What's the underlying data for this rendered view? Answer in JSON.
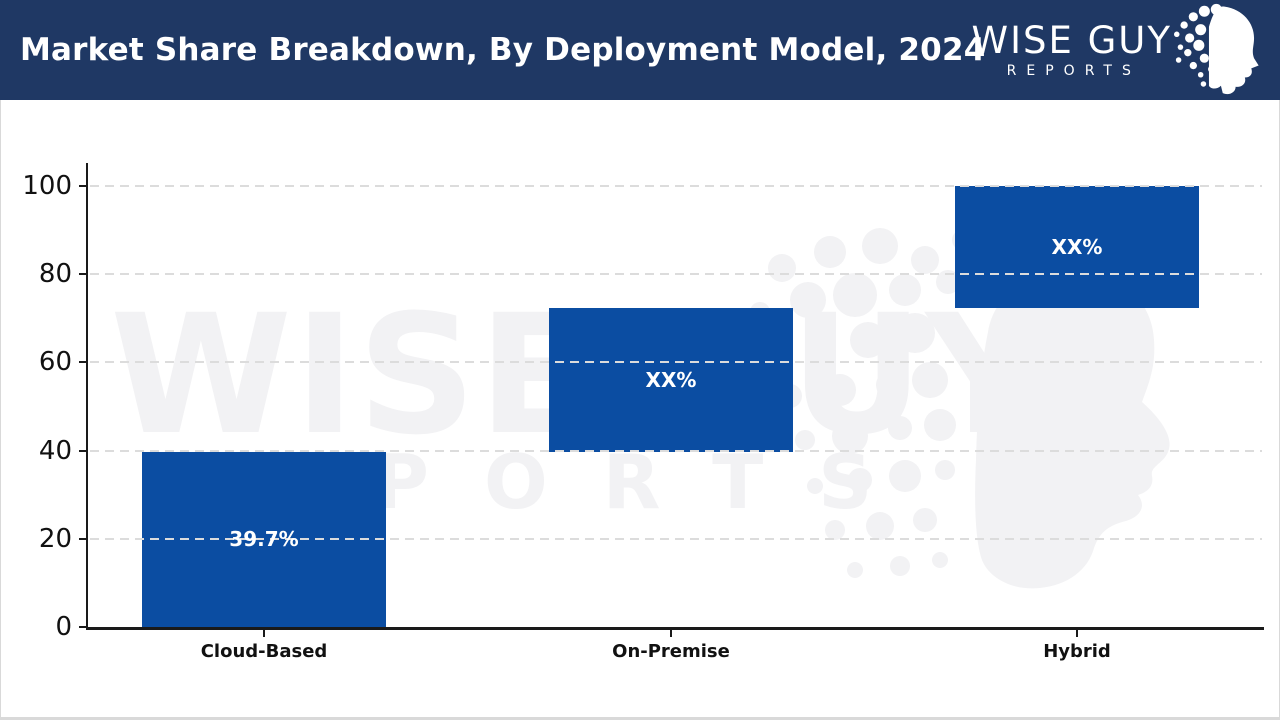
{
  "header": {
    "title": "Market Share Breakdown, By Deployment Model, 2024",
    "logo": {
      "line1": "WISE GUY",
      "line2": "REPORTS"
    }
  },
  "watermark": {
    "line1": "WISE GUY",
    "line2": "REPORTS"
  },
  "colors": {
    "header_bg": "#1f3864",
    "bar": "#0b4da2",
    "grid": "#dcdcdc",
    "axis": "#1a1a1a",
    "value_label": "#ffffff",
    "watermark": "#f2f2f4"
  },
  "chart_data": {
    "type": "bar",
    "subtype": "floating-segment-waterfall",
    "title": "Market Share Breakdown, By Deployment Model, 2024",
    "categories": [
      "Cloud-Based",
      "On-Premise",
      "Hybrid"
    ],
    "segments": [
      {
        "category": "Cloud-Based",
        "start": 0,
        "end": 39.7,
        "label": "39.7%"
      },
      {
        "category": "On-Premise",
        "start": 39.7,
        "end": 72.4,
        "label": "XX%"
      },
      {
        "category": "Hybrid",
        "start": 72.4,
        "end": 100,
        "label": "XX%"
      }
    ],
    "ylim": [
      0,
      100
    ],
    "yticks": [
      0,
      20,
      40,
      60,
      80,
      100
    ],
    "xlabel": "",
    "ylabel": "",
    "grid": "horizontal-dashed",
    "legend": "none",
    "bar_color": "#0b4da2",
    "value_label_color": "#ffffff"
  }
}
